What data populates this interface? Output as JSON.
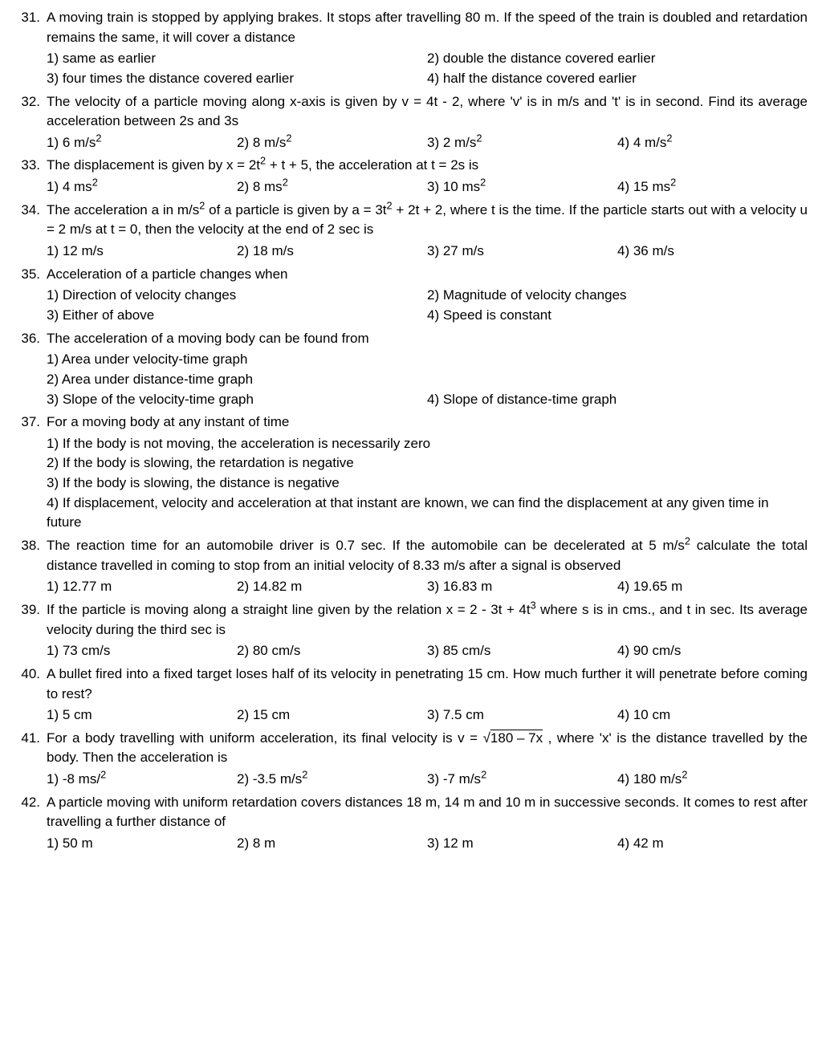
{
  "questions": [
    {
      "num": "31.",
      "text": "A moving train is stopped by applying brakes. It stops after travelling 80 m. If the speed of the train is doubled and retardation remains the same, it will cover a distance",
      "options": [
        {
          "t": "1) same as earlier",
          "w": "opt-2"
        },
        {
          "t": "2) double the distance covered earlier",
          "w": "opt-2"
        },
        {
          "t": "3) four times the distance covered earlier",
          "w": "opt-2"
        },
        {
          "t": "4) half the distance covered earlier",
          "w": "opt-2"
        }
      ]
    },
    {
      "num": "32.",
      "text": "The velocity of a particle moving along x-axis is given by v = 4t - 2, where 'v' is in m/s and 't' is in second. Find its average acceleration between 2s and 3s",
      "options": [
        {
          "t": "1) 6 m/s²",
          "w": "opt-4"
        },
        {
          "t": "2) 8 m/s²",
          "w": "opt-4"
        },
        {
          "t": "3) 2 m/s²",
          "w": "opt-4"
        },
        {
          "t": "4) 4 m/s²",
          "w": "opt-4"
        }
      ]
    },
    {
      "num": "33.",
      "text": "The displacement is given by x = 2t² + t + 5, the acceleration at t = 2s is",
      "options": [
        {
          "t": "1) 4 ms²",
          "w": "opt-4"
        },
        {
          "t": "2) 8 ms²",
          "w": "opt-4"
        },
        {
          "t": "3) 10 ms²",
          "w": "opt-4"
        },
        {
          "t": "4) 15 ms²",
          "w": "opt-4"
        }
      ]
    },
    {
      "num": "34.",
      "text": "The acceleration a in m/s² of a particle is given by a = 3t² + 2t + 2, where t is the time. If the particle starts out with a velocity u = 2 m/s at t = 0, then the velocity at the end of 2 sec is",
      "options": [
        {
          "t": "1) 12 m/s",
          "w": "opt-4"
        },
        {
          "t": "2) 18 m/s",
          "w": "opt-4"
        },
        {
          "t": "3) 27 m/s",
          "w": "opt-4"
        },
        {
          "t": "4) 36 m/s",
          "w": "opt-4"
        }
      ]
    },
    {
      "num": "35.",
      "text": "Acceleration of a particle changes when",
      "options": [
        {
          "t": "1) Direction of velocity changes",
          "w": "opt-2"
        },
        {
          "t": "2) Magnitude of velocity changes",
          "w": "opt-2"
        },
        {
          "t": "3) Either of above",
          "w": "opt-2"
        },
        {
          "t": "4) Speed is constant",
          "w": "opt-2"
        }
      ]
    },
    {
      "num": "36.",
      "text": "The acceleration of a moving body can be found from",
      "options": [
        {
          "t": "1) Area under velocity-time graph",
          "w": "opt-full"
        },
        {
          "t": "2) Area under distance-time graph",
          "w": "opt-full"
        },
        {
          "t": "3) Slope of the velocity-time graph",
          "w": "opt-2"
        },
        {
          "t": "4) Slope of distance-time graph",
          "w": "opt-2"
        }
      ]
    },
    {
      "num": "37.",
      "text": "For a moving body at any instant of time",
      "options": [
        {
          "t": "1) If the body is not moving, the acceleration is necessarily zero",
          "w": "opt-full"
        },
        {
          "t": "2) If the body is slowing, the retardation is negative",
          "w": "opt-full"
        },
        {
          "t": "3) If the body is slowing, the distance is negative",
          "w": "opt-full"
        },
        {
          "t": "4) If displacement, velocity and acceleration at that instant are known, we can find the displacement at any given time in future",
          "w": "opt-full"
        }
      ]
    },
    {
      "num": "38.",
      "text": "The reaction time for an automobile driver is 0.7 sec. If the automobile can be decelerated at 5 m/s² calculate the total distance travelled in coming to stop from an initial velocity of 8.33 m/s after a signal is observed",
      "options": [
        {
          "t": "1) 12.77 m",
          "w": "opt-4"
        },
        {
          "t": "2) 14.82 m",
          "w": "opt-4"
        },
        {
          "t": "3) 16.83 m",
          "w": "opt-4"
        },
        {
          "t": "4) 19.65 m",
          "w": "opt-4"
        }
      ]
    },
    {
      "num": "39.",
      "text": "If the particle is moving along a straight line given by the relation x = 2 - 3t + 4t³ where s is in cms., and t in sec. Its average velocity during the third sec is",
      "options": [
        {
          "t": "1) 73 cm/s",
          "w": "opt-4"
        },
        {
          "t": "2) 80 cm/s",
          "w": "opt-4"
        },
        {
          "t": "3) 85 cm/s",
          "w": "opt-4"
        },
        {
          "t": "4) 90 cm/s",
          "w": "opt-4"
        }
      ]
    },
    {
      "num": "40.",
      "text": "A bullet fired into a fixed target loses half of its velocity in penetrating 15 cm. How much further it will penetrate before coming to rest?",
      "options": [
        {
          "t": "1) 5 cm",
          "w": "opt-4"
        },
        {
          "t": "2) 15 cm",
          "w": "opt-4"
        },
        {
          "t": "3) 7.5 cm",
          "w": "opt-4"
        },
        {
          "t": "4) 10 cm",
          "w": "opt-4"
        }
      ]
    },
    {
      "num": "41.",
      "text_html": "For a body travelling with uniform acceleration, its final velocity is v = √<span class=\"radical\">180 – 7x</span> , where 'x' is the distance travelled by the body. Then the acceleration is",
      "options": [
        {
          "t": "1) -8 ms/²",
          "w": "opt-4"
        },
        {
          "t": "2) -3.5 m/s²",
          "w": "opt-4"
        },
        {
          "t": "3) -7 m/s²",
          "w": "opt-4"
        },
        {
          "t": "4) 180 m/s²",
          "w": "opt-4"
        }
      ]
    },
    {
      "num": "42.",
      "text": "A particle moving with uniform retardation covers distances 18 m, 14 m and 10 m in successive seconds. It comes to rest after travelling a further distance of",
      "options": [
        {
          "t": "1) 50 m",
          "w": "opt-4"
        },
        {
          "t": "2) 8 m",
          "w": "opt-4"
        },
        {
          "t": "3) 12 m",
          "w": "opt-4"
        },
        {
          "t": "4) 42 m",
          "w": "opt-4"
        }
      ]
    }
  ]
}
